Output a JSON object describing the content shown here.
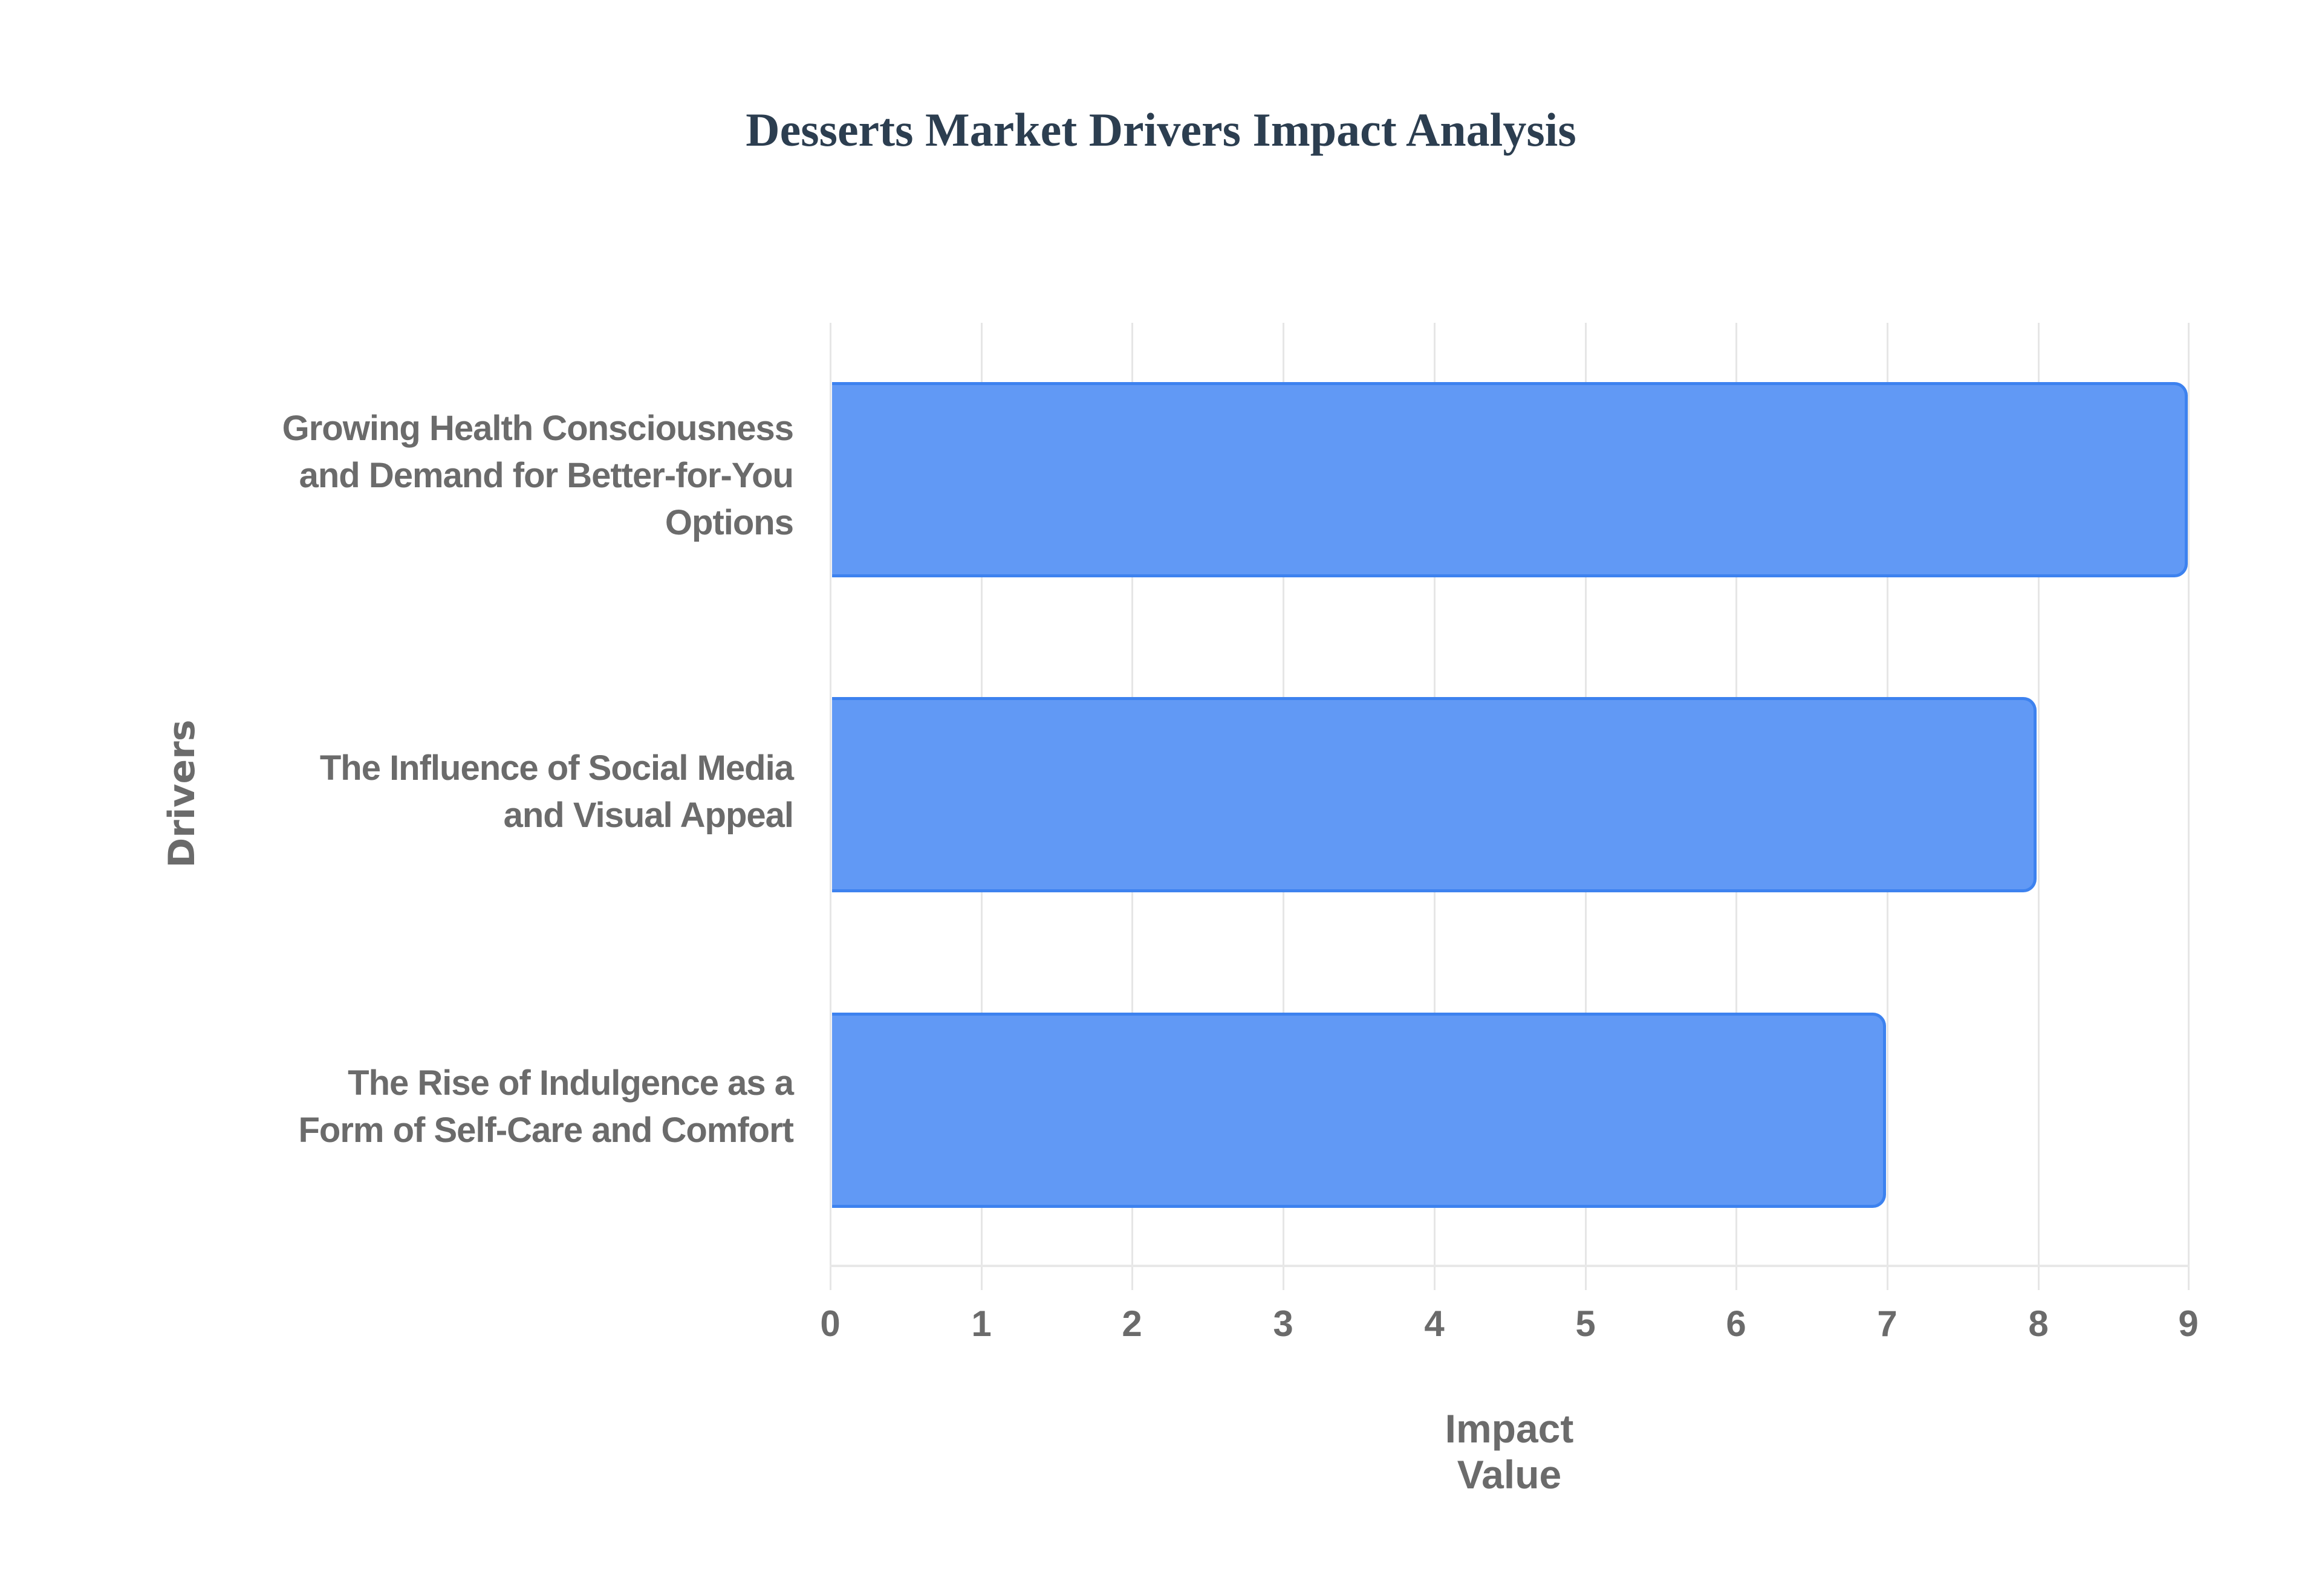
{
  "chart_data": {
    "type": "bar",
    "orientation": "horizontal",
    "title": "Desserts Market Drivers Impact Analysis",
    "xlabel": "Impact Value",
    "ylabel": "Drivers",
    "categories": [
      "Growing Health Consciousness and Demand for Better-for-You Options",
      "The Influence of Social Media and Visual Appeal",
      "The Rise of Indulgence as a Form of Self-Care and Comfort"
    ],
    "values": [
      9,
      8,
      7
    ],
    "xlim": [
      0,
      9
    ],
    "xticks": [
      0,
      1,
      2,
      3,
      4,
      5,
      6,
      7,
      8,
      9
    ],
    "grid": true,
    "legend": null,
    "bar_color": "#6199f5",
    "bar_border_color": "#3d82ef"
  },
  "labels": {
    "title": "Desserts Market Drivers Impact Analysis",
    "xlabel": "Impact Value",
    "ylabel": "Drivers",
    "cat_lines": [
      [
        "Growing Health Consciousness",
        "and Demand for Better-for-You",
        "Options"
      ],
      [
        "The Influence of Social Media",
        "and Visual Appeal"
      ],
      [
        "The Rise of Indulgence as a",
        "Form of Self-Care and Comfort"
      ]
    ],
    "ticks": [
      "0",
      "1",
      "2",
      "3",
      "4",
      "5",
      "6",
      "7",
      "8",
      "9"
    ]
  }
}
